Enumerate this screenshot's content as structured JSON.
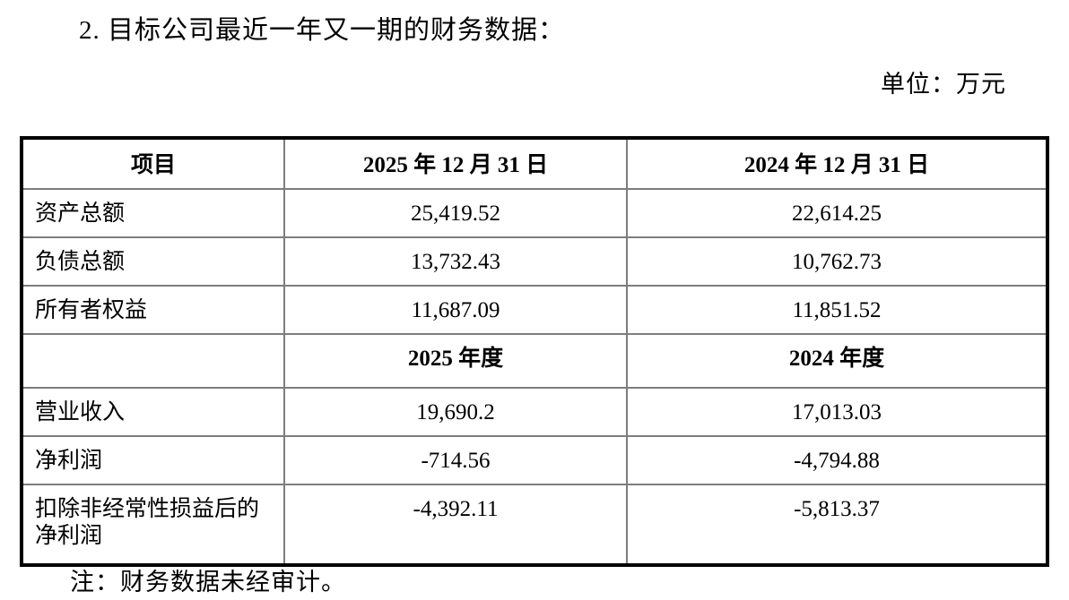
{
  "page": {
    "title": "2. 目标公司最近一年又一期的财务数据：",
    "unit_label": "单位：万元",
    "note": "注：财务数据未经审计。"
  },
  "table": {
    "col_headers": [
      "项目",
      "2025 年 12 月 31 日",
      "2024 年 12 月 31 日"
    ],
    "rows": [
      {
        "item": "资产总额",
        "y2025": "25,419.52",
        "y2024": "22,614.25"
      },
      {
        "item": "负债总额",
        "y2025": "13,732.43",
        "y2024": "10,762.73"
      },
      {
        "item": "所有者权益",
        "y2025": "11,687.09",
        "y2024": "11,851.52"
      }
    ],
    "period_header": {
      "item": "",
      "y2025": "2025 年度",
      "y2024": "2024 年度"
    },
    "income_rows": [
      {
        "item": "营业收入",
        "y2025": "19,690.2",
        "y2024": "17,013.03"
      },
      {
        "item": "净利润",
        "y2025": "-714.56",
        "y2024": "-4,794.88"
      },
      {
        "item": "扣除非经常性损益后的净利润",
        "y2025": "-4,392.11",
        "y2024": "-5,813.37"
      }
    ]
  }
}
